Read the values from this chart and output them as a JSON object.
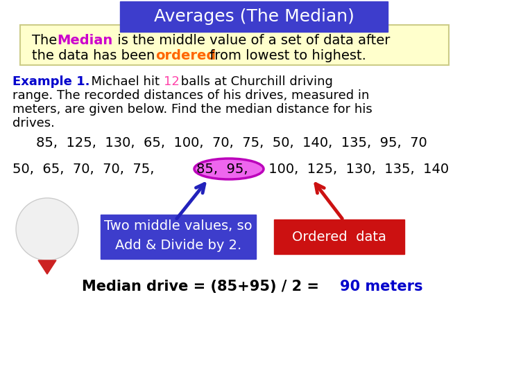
{
  "title": "Averages (The Median)",
  "title_bg": "#3d3dcc",
  "title_color": "white",
  "definition_bg": "#ffffcc",
  "blue_box_text": "Two middle values, so\nAdd & Divide by 2.",
  "blue_box_bg": "#3d3dcc",
  "red_box_text": "Ordered  data",
  "red_box_bg": "#cc1111",
  "highlight_ellipse_color": "#ee66ee",
  "highlight_ellipse_edge": "#bb00bb",
  "background_color": "white",
  "magenta_color": "#ff44aa",
  "orange_color": "#ff6600",
  "blue_color": "#2222bb",
  "dark_blue": "#0000cc",
  "purple_color": "#cc00cc"
}
